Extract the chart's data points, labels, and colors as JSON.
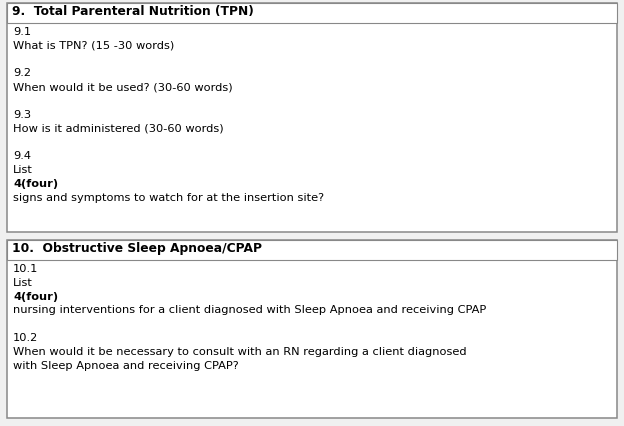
{
  "bg_color": "#f0f0f0",
  "box_bg": "#ffffff",
  "border_color": "#888888",
  "section1": {
    "header": "9.  Total Parenteral Nutrition (TPN)",
    "body_lines": [
      [
        "9.1",
        false
      ],
      [
        "What is TPN? (15 -30 words)",
        false
      ],
      [
        "",
        false
      ],
      [
        "9.2",
        false
      ],
      [
        "When would it be used? (30-60 words)",
        false
      ],
      [
        "",
        false
      ],
      [
        "9.3",
        false
      ],
      [
        "How is it administered (30-60 words)",
        false
      ],
      [
        "",
        false
      ],
      [
        "9.4",
        false
      ],
      [
        "List",
        false
      ],
      [
        "4(four)",
        true
      ],
      [
        "signs and symptoms to watch for at the insertion site?",
        false
      ]
    ]
  },
  "section2": {
    "header": "10.  Obstructive Sleep Apnoea/CPAP",
    "body_lines": [
      [
        "10.1",
        false
      ],
      [
        "List",
        false
      ],
      [
        "4(four)",
        true
      ],
      [
        "nursing interventions for a client diagnosed with Sleep Apnoea and receiving CPAP",
        false
      ],
      [
        "",
        false
      ],
      [
        "10.2",
        false
      ],
      [
        "When would it be necessary to consult with an RN regarding a client diagnosed",
        false
      ],
      [
        "with Sleep Apnoea and receiving CPAP?",
        false
      ]
    ]
  },
  "font_family": "DejaVu Sans",
  "header_fontsize": 8.8,
  "body_fontsize": 8.2,
  "text_color": "#000000",
  "fig_w": 6.24,
  "fig_h": 4.26,
  "dpi": 100
}
